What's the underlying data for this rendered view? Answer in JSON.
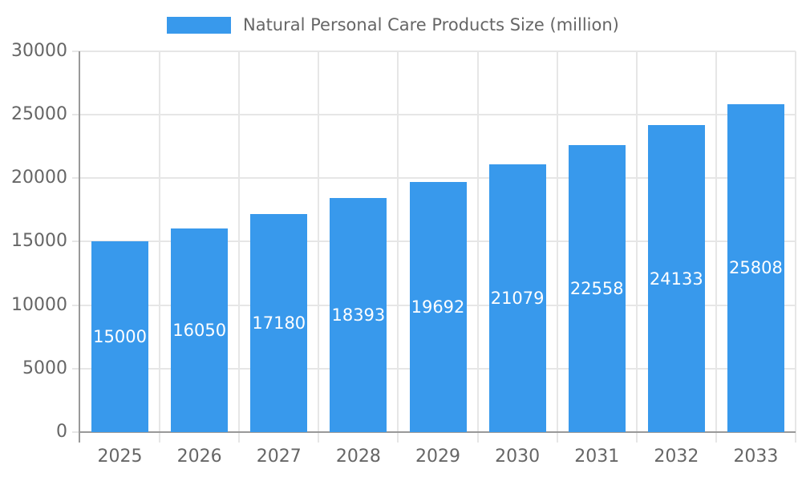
{
  "chart_data": {
    "type": "bar",
    "title": "",
    "legend_label": "Natural Personal Care Products Size (million)",
    "legend_position": "top",
    "categories": [
      "2025",
      "2026",
      "2027",
      "2028",
      "2029",
      "2030",
      "2031",
      "2032",
      "2033"
    ],
    "series": [
      {
        "name": "Natural Personal Care Products Size (million)",
        "values": [
          15000,
          16050,
          17180,
          18393,
          19692,
          21079,
          22558,
          24133,
          25808
        ]
      }
    ],
    "value_labels": {
      "visible": true,
      "position": "inside-center",
      "color": "#ffffff"
    },
    "xlabel": "",
    "ylabel": "",
    "ylim": [
      0,
      30000
    ],
    "yticks": [
      0,
      5000,
      10000,
      15000,
      20000,
      25000,
      30000
    ],
    "grid": true,
    "grid_at_category_edges": true,
    "colors": {
      "bar": "#3899EC",
      "grid": "#E6E6E6",
      "axis_line": "#999999",
      "tick_text": "#666666",
      "value_text": "#ffffff",
      "background": "#ffffff"
    }
  }
}
